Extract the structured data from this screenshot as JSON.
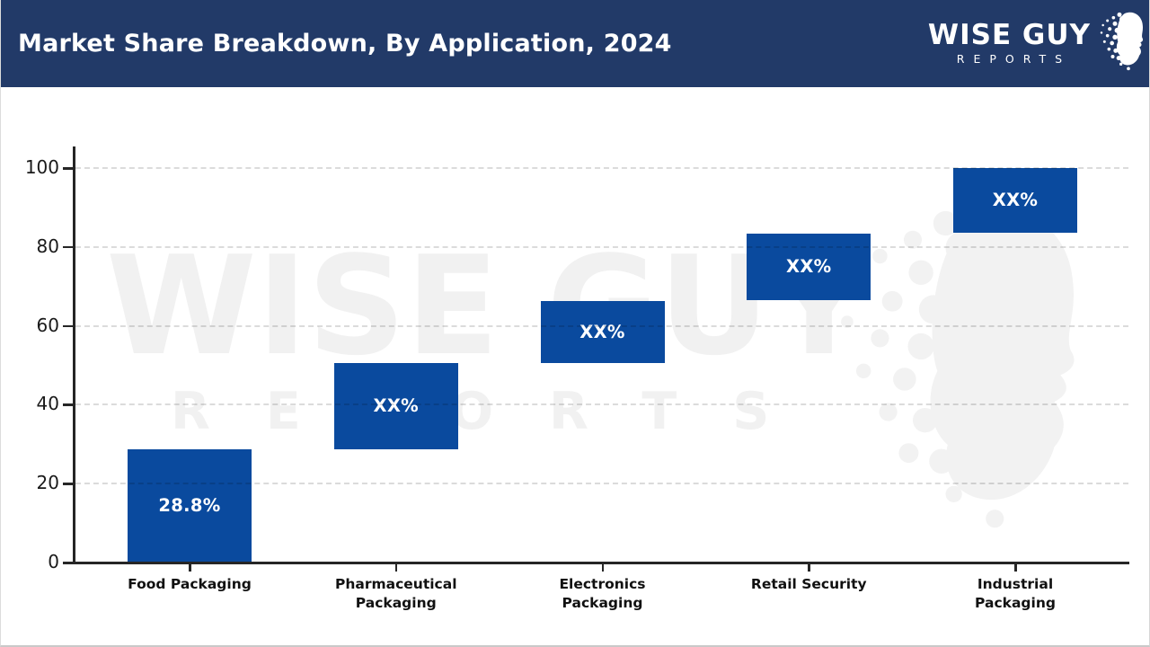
{
  "header": {
    "title": "Market Share Breakdown, By Application, 2024",
    "logo": {
      "line1": "WISE GUY",
      "line2": "REPORTS"
    }
  },
  "watermark": {
    "line1": "WISE GUY",
    "line2": "REPORTS"
  },
  "colors": {
    "header_bg": "#223a68",
    "bar_blue": "#0a4a9e",
    "axis": "#262626",
    "grid_dash": "rgba(0,0,0,0.14)",
    "watermark_gray": "#f1f1f1",
    "bar_label": "#ffffff"
  },
  "chart_data": {
    "type": "bar",
    "subtype": "waterfall",
    "title": "Market Share Breakdown, By Application, 2024",
    "categories": [
      "Food Packaging",
      "Pharmaceutical Packaging",
      "Electronics Packaging",
      "Retail Security",
      "Industrial Packaging"
    ],
    "category_label_lines": [
      [
        "Food Packaging"
      ],
      [
        "Pharmaceutical",
        "Packaging"
      ],
      [
        "Electronics",
        "Packaging"
      ],
      [
        "Retail Security"
      ],
      [
        "Industrial",
        "Packaging"
      ]
    ],
    "bars": [
      {
        "category": "Food Packaging",
        "start": 0,
        "end": 28.8,
        "label": "28.8%"
      },
      {
        "category": "Pharmaceutical Packaging",
        "start": 28.8,
        "end": 50.6,
        "label": "XX%"
      },
      {
        "category": "Electronics Packaging",
        "start": 50.6,
        "end": 66.3,
        "label": "XX%"
      },
      {
        "category": "Retail Security",
        "start": 66.5,
        "end": 83.4,
        "label": "XX%"
      },
      {
        "category": "Industrial Packaging",
        "start": 83.6,
        "end": 100,
        "label": "XX%"
      }
    ],
    "ylim": [
      0,
      100
    ],
    "yticks": [
      0,
      20,
      40,
      60,
      80,
      100
    ],
    "xlabel": "",
    "ylabel": "",
    "grid": "horizontal-dashed",
    "legend": "none",
    "bar_color": "#0a4a9e",
    "label_color": "#ffffff"
  }
}
